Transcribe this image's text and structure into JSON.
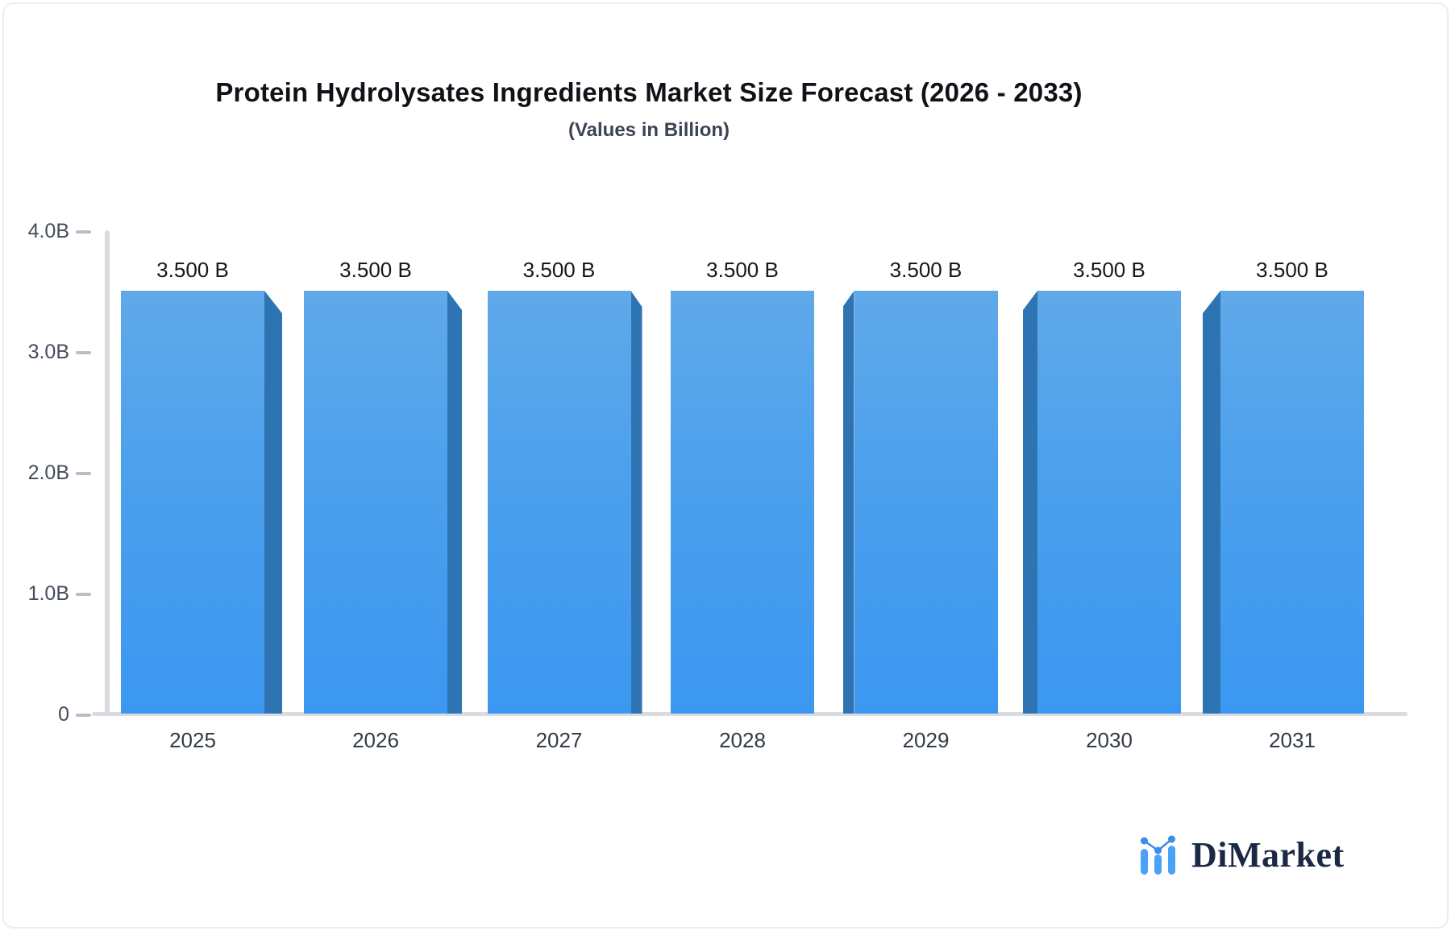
{
  "chart_data": {
    "type": "bar",
    "title": "Protein Hydrolysates Ingredients Market Size Forecast (2026 - 2033)",
    "subtitle": "(Values in Billion)",
    "categories": [
      "2025",
      "2026",
      "2027",
      "2028",
      "2029",
      "2030",
      "2031"
    ],
    "values": [
      3.5,
      3.5,
      3.5,
      3.5,
      3.5,
      3.5,
      3.5
    ],
    "value_labels": [
      "3.500 B",
      "3.500 B",
      "3.500 B",
      "3.500 B",
      "3.500 B",
      "3.500 B",
      "3.500 B"
    ],
    "y_ticks": [
      {
        "value": 4,
        "label": "4.0B"
      },
      {
        "value": 3,
        "label": "3.0B"
      },
      {
        "value": 2,
        "label": "2.0B"
      },
      {
        "value": 1,
        "label": "1.0B"
      },
      {
        "value": 0,
        "label": "0"
      }
    ],
    "ylim": [
      0,
      4
    ],
    "unit": "Billion",
    "grid": false,
    "legend": "none",
    "bar_style": "3d-beveled",
    "colors": {
      "bar_face_top": "#60a9e9",
      "bar_face_bottom": "#3b97f1",
      "bar_side": "#2e74b3",
      "axis_line": "#d8dbe0",
      "tick_text": "#454d5c",
      "label_text": "#17181c"
    }
  },
  "branding": {
    "logo_text": "DiMarket",
    "logo_icon": "bar-chart-sparkline-icon",
    "logo_text_color": "#1b2945",
    "logo_icon_color": "#4aa2f7"
  }
}
